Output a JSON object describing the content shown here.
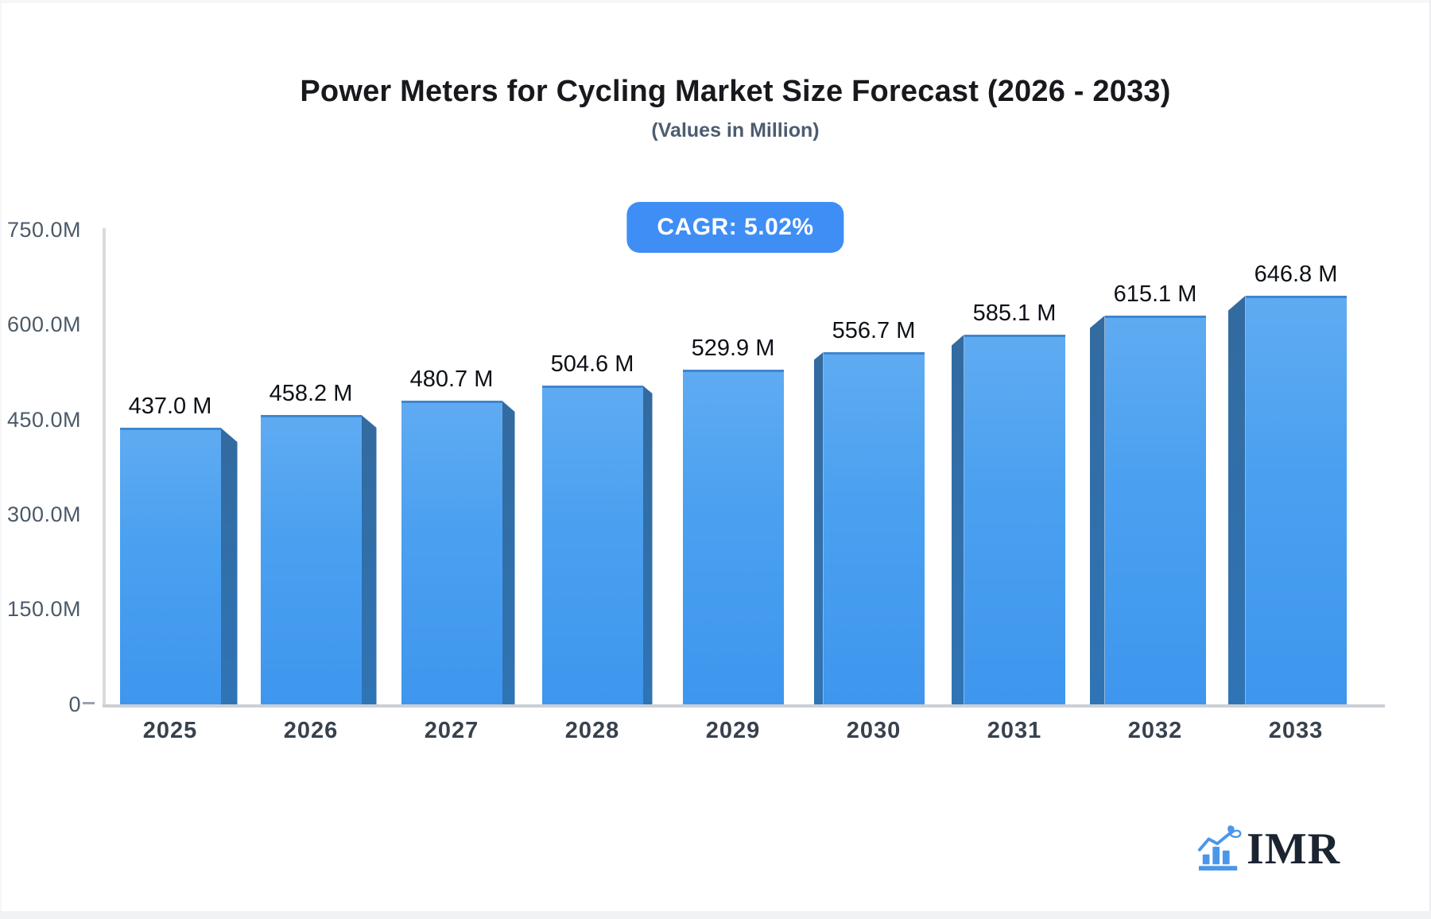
{
  "title": "Power Meters for Cycling Market Size Forecast (2026 - 2033)",
  "subtitle": "(Values in Million)",
  "badge": {
    "label": "CAGR: 5.02%",
    "color": "#3e8ef6"
  },
  "brand": {
    "name": "IMR",
    "icon": "bar-chart-leaf-icon"
  },
  "chart_data": {
    "type": "bar",
    "title": "Power Meters for Cycling Market Size Forecast (2026 - 2033)",
    "subtitle": "(Values in Million)",
    "xlabel": "",
    "ylabel": "",
    "categories": [
      "2025",
      "2026",
      "2027",
      "2028",
      "2029",
      "2030",
      "2031",
      "2032",
      "2033"
    ],
    "values": [
      437.0,
      458.2,
      480.7,
      504.6,
      529.9,
      556.7,
      585.1,
      615.1,
      646.8
    ],
    "bar_labels": [
      "437.0 M",
      "458.2 M",
      "480.7 M",
      "504.6 M",
      "529.9 M",
      "556.7 M",
      "585.1 M",
      "615.1 M",
      "646.8 M"
    ],
    "y_tick_labels": [
      "750.0M",
      "600.0M",
      "450.0M",
      "300.0M",
      "150.0M",
      "0"
    ],
    "y_tick_values": [
      750,
      600,
      450,
      300,
      150,
      0
    ],
    "ylim": [
      0,
      750
    ],
    "grid": false,
    "legend": "none",
    "cagr": "5.02%",
    "colors": {
      "bar_face": "#4ba1f0",
      "bar_side": "#2f74b5",
      "badge": "#3e8ef6",
      "axis": "#d7dadf",
      "value_label": "#0d1117",
      "tick_label": "#4c5a68"
    }
  }
}
